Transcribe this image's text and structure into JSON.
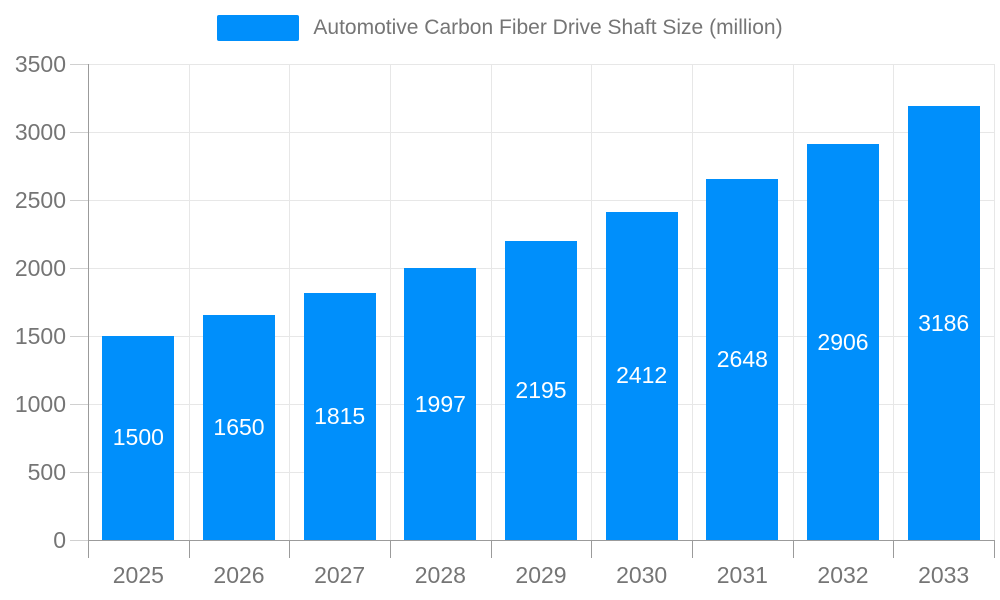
{
  "legend": {
    "label": "Automotive Carbon Fiber Drive Shaft Size (million)",
    "swatch_color": "#008FFB"
  },
  "chart_data": {
    "type": "bar",
    "title": "Automotive Carbon Fiber Drive Shaft Size (million)",
    "categories": [
      "2025",
      "2026",
      "2027",
      "2028",
      "2029",
      "2030",
      "2031",
      "2032",
      "2033"
    ],
    "values": [
      1500,
      1650,
      1815,
      1997,
      2195,
      2412,
      2648,
      2906,
      3186
    ],
    "series": [
      {
        "name": "Automotive Carbon Fiber Drive Shaft Size (million)",
        "values": [
          1500,
          1650,
          1815,
          1997,
          2195,
          2412,
          2648,
          2906,
          3186
        ]
      }
    ],
    "xlabel": "",
    "ylabel": "",
    "ylim": [
      0,
      3500
    ],
    "ytick_step": 500,
    "yticks": [
      "0",
      "500",
      "1000",
      "1500",
      "2000",
      "2500",
      "3000",
      "3500"
    ],
    "grid": true,
    "legend_position": "top-center",
    "value_labels": "inside-center",
    "colors": {
      "bar": "#008FFB",
      "grid": "#e7e7e7",
      "axis_line": "#9b9b9b",
      "y_tick": "#d0d0d0",
      "x_tick": "#9b9b9b",
      "axis_text": "#757575",
      "value_text": "#ffffff",
      "legend_text": "#757575",
      "background": "#ffffff"
    }
  }
}
